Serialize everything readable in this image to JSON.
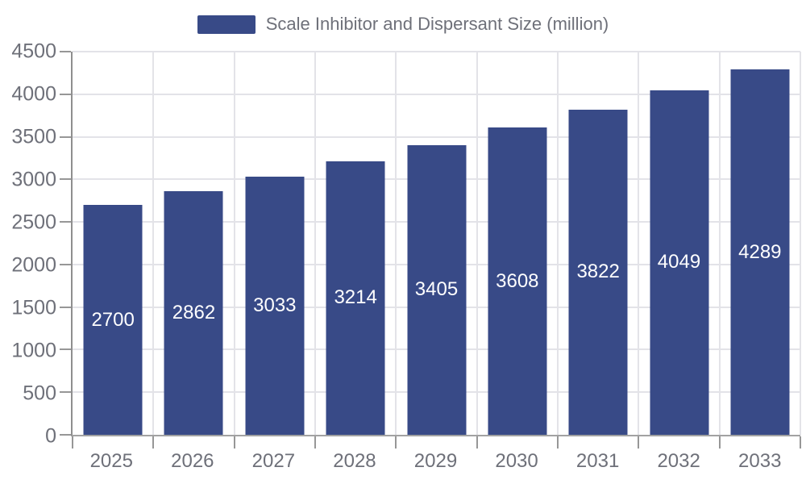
{
  "legend": {
    "label": "Scale Inhibitor and Dispersant Size (million)"
  },
  "colors": {
    "bar": "#384A87",
    "grid": "#E3E3E8",
    "axis_line": "#979797",
    "axis_label": "#6E7079",
    "value_label": "#FFFFFF",
    "background": "#FFFFFF"
  },
  "chart_data": {
    "type": "bar",
    "title": "Scale Inhibitor and Dispersant Size (million)",
    "series_name": "Scale Inhibitor and Dispersant Size (million)",
    "categories": [
      "2025",
      "2026",
      "2027",
      "2028",
      "2029",
      "2030",
      "2031",
      "2032",
      "2033"
    ],
    "values": [
      2700,
      2862,
      3033,
      3214,
      3405,
      3608,
      3822,
      4049,
      4289
    ],
    "xlabel": "",
    "ylabel": "",
    "ylim": [
      0,
      4500
    ],
    "ytick_step": 500,
    "yticks": [
      0,
      500,
      1000,
      1500,
      2000,
      2500,
      3000,
      3500,
      4000,
      4500
    ],
    "grid": true,
    "legend_position": "top-center",
    "value_label_position": "inside-middle",
    "bar_color": "#384A87"
  }
}
